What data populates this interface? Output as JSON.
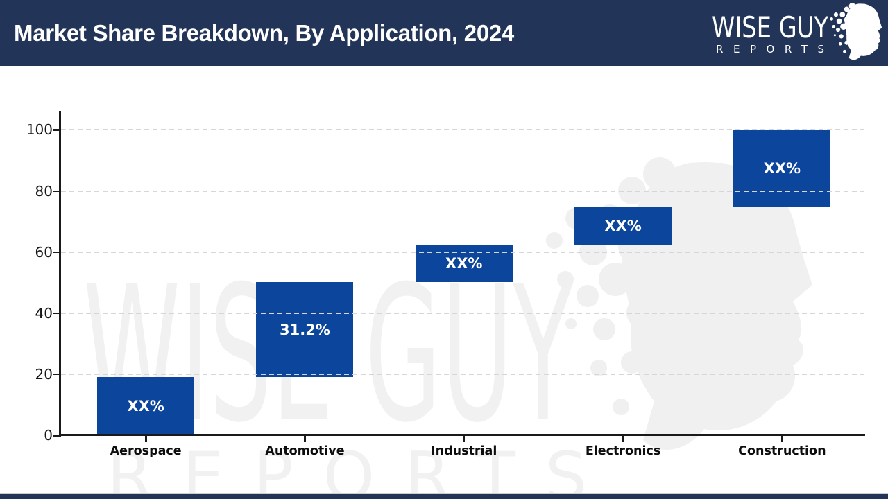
{
  "page": {
    "header": {
      "title": "Market Share Breakdown, By Application, 2024",
      "logo_line1": "WISE GUY",
      "logo_line2": "REPORTS",
      "bg_color": "#233459"
    },
    "watermark": {
      "line1": "WISE GUY",
      "line2": "REPORTS"
    },
    "footer": {
      "bg_color": "#233459"
    }
  },
  "chart_data": {
    "type": "bar",
    "subtype": "waterfall",
    "title": "Market Share Breakdown, By Application, 2024",
    "categories": [
      "Aerospace",
      "Automotive",
      "Industrial",
      "Electronics",
      "Construction"
    ],
    "series": [
      {
        "name": "Market Share",
        "segments": [
          {
            "category": "Aerospace",
            "start": 0,
            "end": 19,
            "label": "XX%"
          },
          {
            "category": "Automotive",
            "start": 19,
            "end": 50.2,
            "label": "31.2%"
          },
          {
            "category": "Industrial",
            "start": 50.2,
            "end": 62.4,
            "label": "XX%"
          },
          {
            "category": "Electronics",
            "start": 62.4,
            "end": 74.9,
            "label": "XX%"
          },
          {
            "category": "Construction",
            "start": 74.9,
            "end": 100,
            "label": "XX%"
          }
        ]
      }
    ],
    "xlabel": "",
    "ylabel": "",
    "yticks": [
      "0",
      "20",
      "40",
      "60",
      "80",
      "100"
    ],
    "ylim": [
      0,
      106
    ],
    "grid": true,
    "grid_style": "dashed",
    "legend": false,
    "bar_color": "#0c459c",
    "bar_label_color": "#ffffff",
    "axis_color": "#1a1a1a"
  }
}
